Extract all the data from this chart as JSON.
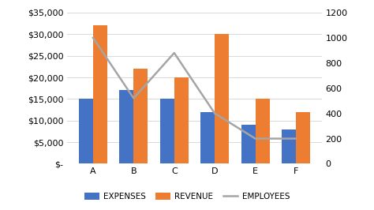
{
  "categories": [
    "A",
    "B",
    "C",
    "D",
    "E",
    "F"
  ],
  "expenses": [
    15000,
    17000,
    15000,
    12000,
    9000,
    8000
  ],
  "revenue": [
    32000,
    22000,
    20000,
    30000,
    15000,
    12000
  ],
  "employees": [
    1000,
    520,
    880,
    400,
    200,
    200
  ],
  "bar_color_expenses": "#4472C4",
  "bar_color_revenue": "#ED7D31",
  "line_color_employees": "#A5A5A5",
  "background_color": "#FFFFFF",
  "ylim_left": [
    0,
    35000
  ],
  "ylim_right": [
    0,
    1200
  ],
  "yticks_left": [
    0,
    5000,
    10000,
    15000,
    20000,
    25000,
    30000,
    35000
  ],
  "yticks_right": [
    0,
    200,
    400,
    600,
    800,
    1000,
    1200
  ],
  "legend_labels": [
    "EXPENSES",
    "REVENUE",
    "EMPLOYEES"
  ],
  "bar_width": 0.35,
  "figsize": [
    4.74,
    2.66
  ],
  "dpi": 100
}
